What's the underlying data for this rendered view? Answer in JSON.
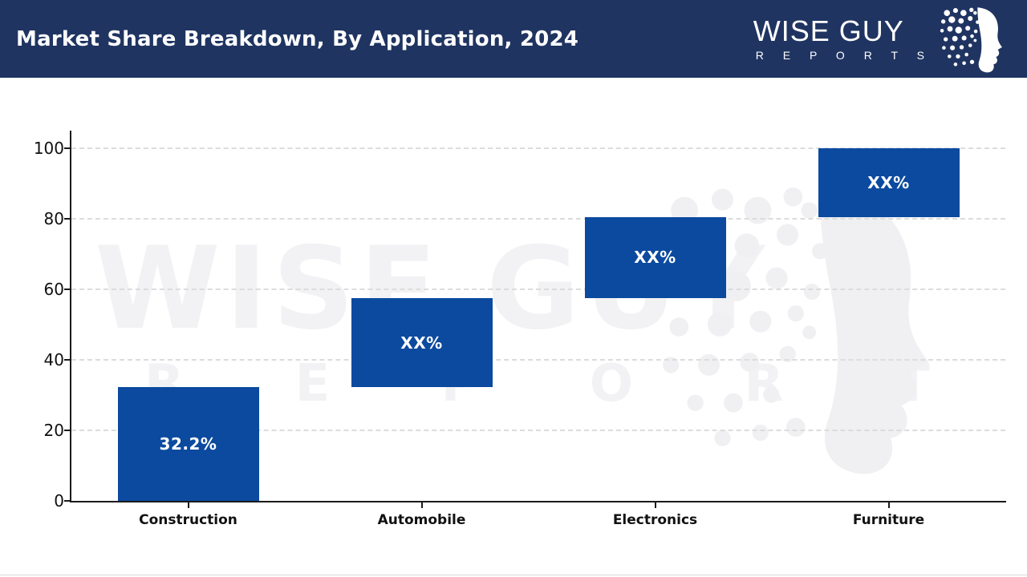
{
  "header": {
    "title": "Market Share Breakdown, By Application, 2024",
    "logo": {
      "line1": "WISE GUY",
      "line2": "REPORTS"
    }
  },
  "watermark": {
    "line1": "WISE GUY",
    "line2": "REPORTS"
  },
  "colors": {
    "header_bg": "#1f3461",
    "bar": "#0b4a9f",
    "bar_label": "#ffffff",
    "gridline": "#dcdcdc",
    "axis": "#1a1a1a",
    "watermark": "#f2f2f4"
  },
  "chart_data": {
    "type": "bar",
    "variant": "waterfall",
    "title": "Market Share Breakdown, By Application, 2024",
    "categories": [
      "Construction",
      "Automobile",
      "Electronics",
      "Furniture"
    ],
    "segments": [
      {
        "category": "Construction",
        "start": 0,
        "end": 32.2,
        "label": "32.2%"
      },
      {
        "category": "Automobile",
        "start": 32.2,
        "end": 57.5,
        "label": "XX%"
      },
      {
        "category": "Electronics",
        "start": 57.5,
        "end": 80.5,
        "label": "XX%"
      },
      {
        "category": "Furniture",
        "start": 80.5,
        "end": 100,
        "label": "XX%"
      }
    ],
    "ylim": [
      0,
      105
    ],
    "yticks": [
      0,
      20,
      40,
      60,
      80,
      100
    ],
    "grid": "horizontal-dashed",
    "legend": "none"
  }
}
